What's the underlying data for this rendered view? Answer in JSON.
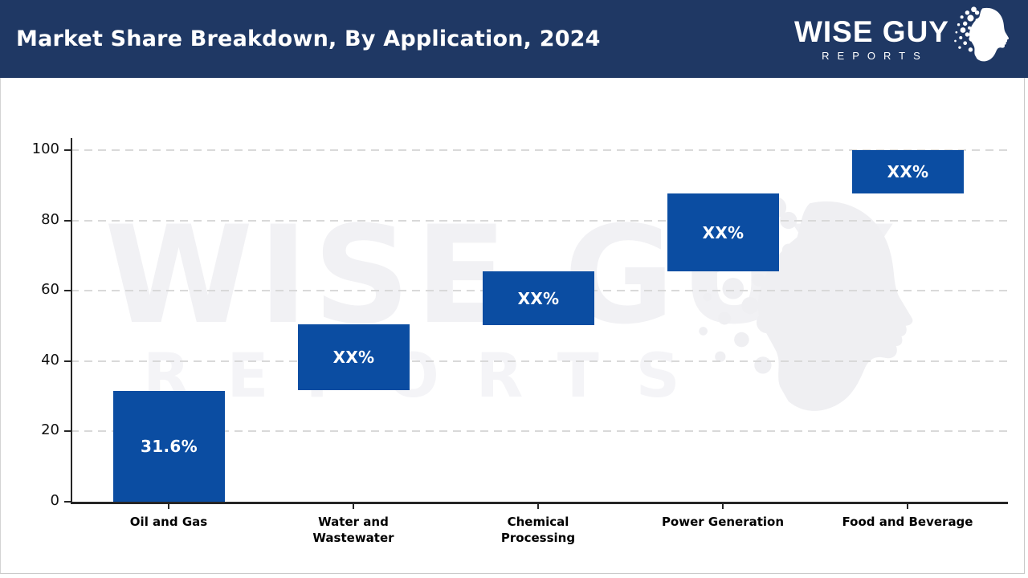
{
  "header": {
    "title": "Market Share Breakdown, By Application, 2024"
  },
  "logo": {
    "line1": "WISE GUY",
    "line2": "REPORTS",
    "icon": "head-profile-dots-icon"
  },
  "watermark": {
    "line1": "WISE GUY",
    "line2": "REPORTS"
  },
  "colors": {
    "header_bg": "#1f3864",
    "bar": "#0b4da2",
    "bar_label": "#ffffff",
    "axis": "#262626",
    "gridline": "#d9d9d9",
    "watermark": "#f1f1f4"
  },
  "chart_data": {
    "type": "bar",
    "subtype": "waterfall",
    "title": "Market Share Breakdown, By Application, 2024",
    "xlabel": "",
    "ylabel": "",
    "ylim": [
      0,
      100
    ],
    "yticks": [
      0,
      20,
      40,
      60,
      80,
      100
    ],
    "grid": "horizontal-dashed",
    "legend": "none",
    "categories": [
      "Oil and Gas",
      "Water and Wastewater",
      "Chemical Processing",
      "Power Generation",
      "Food and Beverage"
    ],
    "category_label_lines": [
      [
        "Oil and Gas"
      ],
      [
        "Water and",
        "Wastewater"
      ],
      [
        "Chemical",
        "Processing"
      ],
      [
        "Power Generation"
      ],
      [
        "Food and Beverage"
      ]
    ],
    "segments": [
      {
        "category": "Oil and Gas",
        "start": 0,
        "end": 31.6,
        "label": "31.6%"
      },
      {
        "category": "Water and Wastewater",
        "start": 31.6,
        "end": 50.4,
        "label": "XX%"
      },
      {
        "category": "Chemical Processing",
        "start": 50.4,
        "end": 65.6,
        "label": "XX%"
      },
      {
        "category": "Power Generation",
        "start": 65.6,
        "end": 87.7,
        "label": "XX%"
      },
      {
        "category": "Food and Beverage",
        "start": 87.7,
        "end": 100,
        "label": "XX%"
      }
    ]
  }
}
